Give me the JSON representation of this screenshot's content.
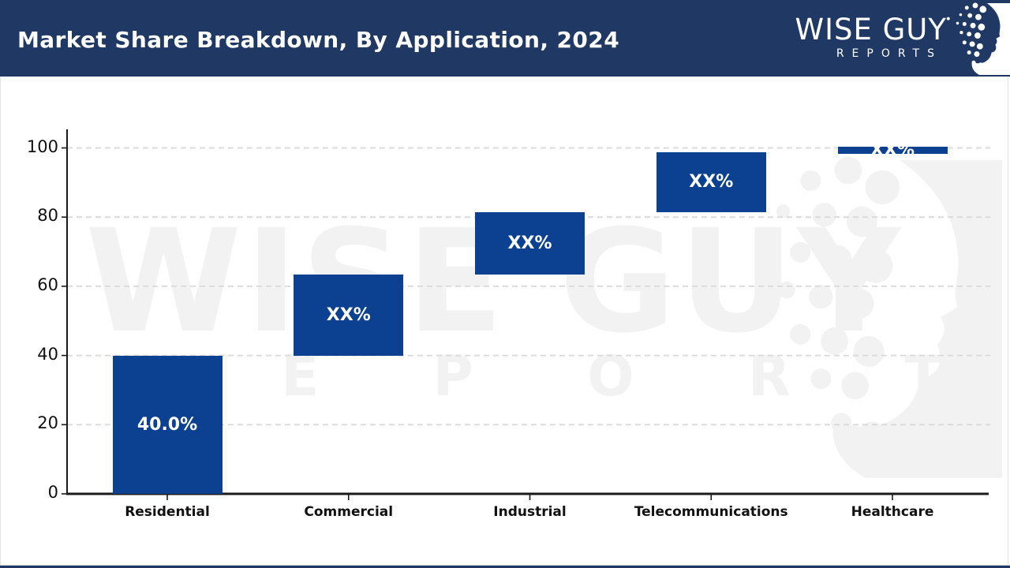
{
  "header": {
    "title": "Market Share Breakdown, By Application, 2024",
    "logo": {
      "line1": "WISE GUY",
      "line2": "REPORTS"
    }
  },
  "watermark": {
    "line1": "WISE GUY",
    "line2": "R E P O R T S"
  },
  "colors": {
    "header_bg": "#1f3864",
    "bar": "#0c4191",
    "grid": "#d9d9d9",
    "axis": "#1a1a1a",
    "watermark": "#f2f2f2",
    "bar_label_text": "#ffffff"
  },
  "chart_data": {
    "type": "bar",
    "subtype": "waterfall",
    "title": "Market Share Breakdown, By Application, 2024",
    "categories": [
      "Residential",
      "Commercial",
      "Industrial",
      "Telecommunications",
      "Healthcare"
    ],
    "series": [
      {
        "name": "Market Share",
        "segments": [
          {
            "category": "Residential",
            "start": 0,
            "end": 40,
            "label": "40.0%"
          },
          {
            "category": "Commercial",
            "start": 40,
            "end": 63.5,
            "label": "XX%"
          },
          {
            "category": "Industrial",
            "start": 63.5,
            "end": 81.5,
            "label": "XX%"
          },
          {
            "category": "Telecommunications",
            "start": 81.5,
            "end": 98.8,
            "label": "XX%"
          },
          {
            "category": "Healthcare",
            "start": 98.3,
            "end": 100.3,
            "label": "XX%"
          }
        ]
      }
    ],
    "xlabel": "",
    "ylabel": "",
    "yticks": [
      0,
      20,
      40,
      60,
      80,
      100
    ],
    "ylim": [
      0,
      105
    ],
    "grid": "horizontal-dashed",
    "legend": "none"
  }
}
